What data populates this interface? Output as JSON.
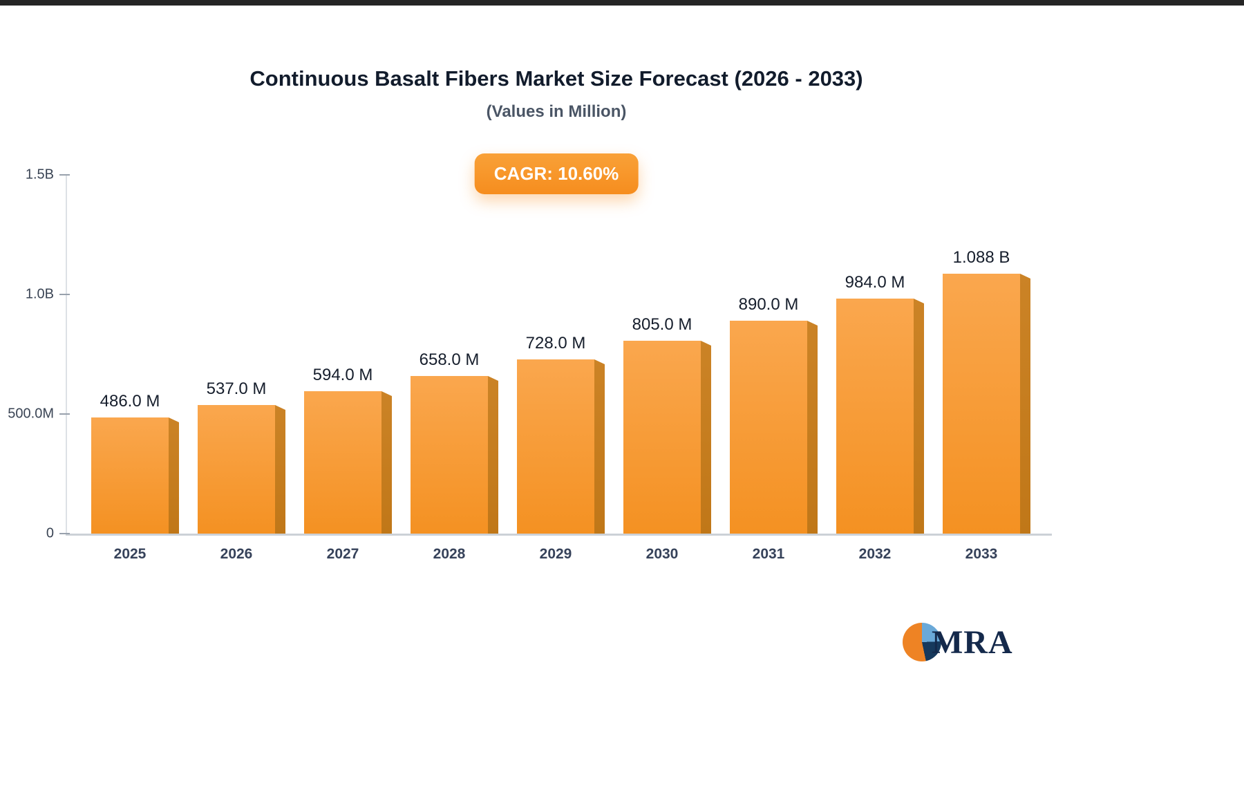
{
  "page": {
    "title": "Continuous Basalt Fibers Market Size Forecast (2026 - 2033)",
    "subtitle": "(Values in Million)",
    "cagr_badge": "CAGR: 10.60%"
  },
  "chart_data": {
    "type": "bar",
    "title": "Continuous Basalt Fibers Market Size Forecast (2026 - 2033)",
    "subtitle": "(Values in Million)",
    "categories": [
      "2025",
      "2026",
      "2027",
      "2028",
      "2029",
      "2030",
      "2031",
      "2032",
      "2033"
    ],
    "values": [
      486,
      537,
      594,
      658,
      728,
      805,
      890,
      984,
      1088
    ],
    "value_unit": "Million",
    "value_labels": [
      "486.0 M",
      "537.0 M",
      "594.0 M",
      "658.0 M",
      "728.0 M",
      "805.0 M",
      "890.0 M",
      "984.0 M",
      "1.088 B"
    ],
    "annotation": "CAGR: 10.60%",
    "xlabel": "",
    "ylabel": "",
    "ylim": [
      0,
      1500
    ],
    "yticks": [
      {
        "value": 0,
        "label": "0"
      },
      {
        "value": 500,
        "label": "500.0M"
      },
      {
        "value": 1000,
        "label": "1.0B"
      },
      {
        "value": 1500,
        "label": "1.5B"
      }
    ],
    "grid": "off",
    "legend": "none",
    "bar_color": "#F7941E",
    "bar_side_color": "#C27A1A"
  },
  "logo": {
    "text": "MRA"
  },
  "colors": {
    "accent_orange": "#F7941E",
    "title_text": "#121C2C",
    "subtitle_text": "#4A5565",
    "axis_text": "#3A4454",
    "badge_text": "#FFFFFF"
  }
}
